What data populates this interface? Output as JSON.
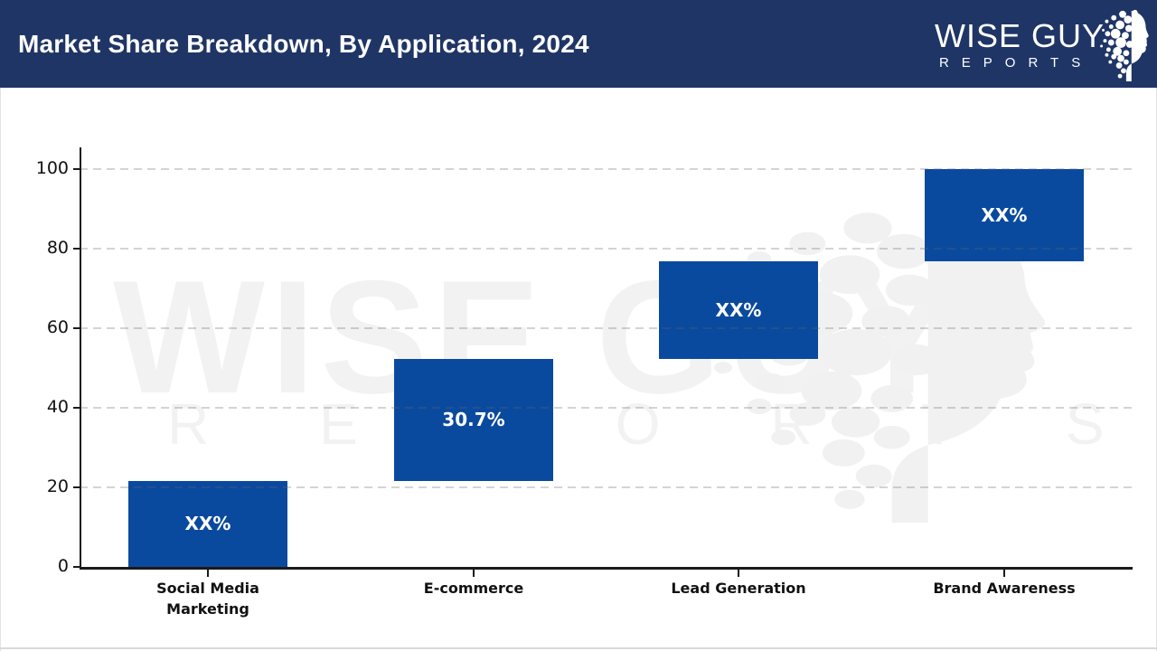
{
  "header": {
    "title": "Market Share Breakdown, By Application, 2024",
    "logo": {
      "line1": "WISE GUY",
      "line2": "REPORTS"
    }
  },
  "watermark": {
    "line1": "WISE GUY",
    "line2": "R E P O R T S"
  },
  "chart_data": {
    "type": "bar",
    "subtype": "waterfall-floating-bars",
    "title": "Market Share Breakdown, By Application, 2024",
    "categories": [
      "Social Media Marketing",
      "E-commerce",
      "Lead Generation",
      "Brand Awareness"
    ],
    "segments": [
      {
        "category": "Social Media Marketing",
        "start": 0,
        "end": 21.6,
        "label": "XX%"
      },
      {
        "category": "E-commerce",
        "start": 21.6,
        "end": 52.3,
        "label": "30.7%"
      },
      {
        "category": "Lead Generation",
        "start": 52.3,
        "end": 76.8,
        "label": "XX%"
      },
      {
        "category": "Brand Awareness",
        "start": 76.8,
        "end": 100,
        "label": "XX%"
      }
    ],
    "yticks": [
      0,
      20,
      40,
      60,
      80,
      100
    ],
    "ylim": [
      0,
      100
    ],
    "xlabel": "",
    "ylabel": "",
    "grid": "horizontal-dashed",
    "legend": "none",
    "colors": {
      "bar": "#0a4a9e",
      "header_bg": "#1f3566",
      "axis": "#1a1a1a",
      "grid_line": "#dcdcdc",
      "watermark": "#f2f2f2",
      "value_label_text": "#ffffff"
    }
  }
}
